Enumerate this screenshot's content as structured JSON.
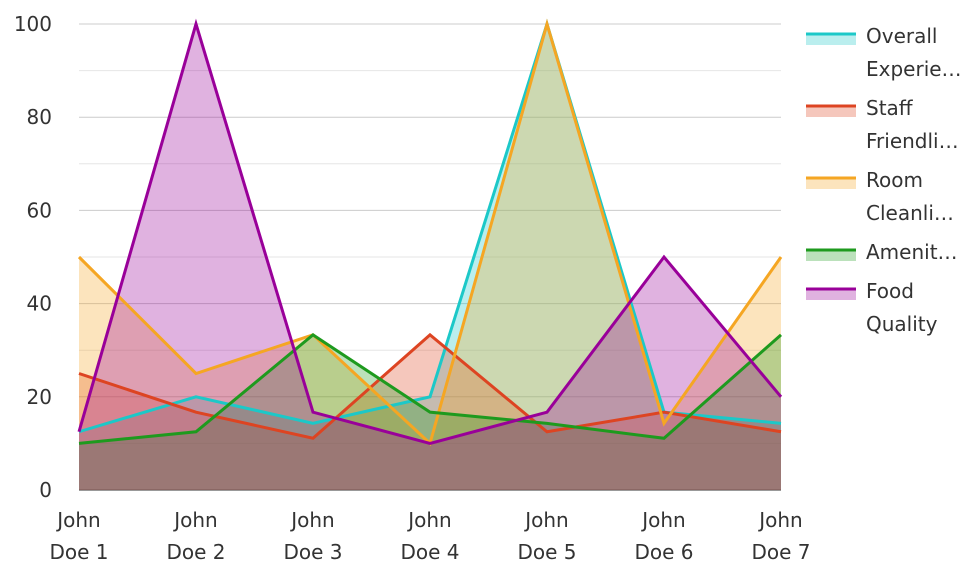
{
  "chart_data": {
    "type": "area",
    "categories": [
      "John Doe 1",
      "John Doe 2",
      "John Doe 3",
      "John Doe 4",
      "John Doe 5",
      "John Doe 6",
      "John Doe 7"
    ],
    "category_lines": [
      [
        "John",
        "Doe 1"
      ],
      [
        "John",
        "Doe 2"
      ],
      [
        "John",
        "Doe 3"
      ],
      [
        "John",
        "Doe 4"
      ],
      [
        "John",
        "Doe 5"
      ],
      [
        "John",
        "Doe 6"
      ],
      [
        "John",
        "Doe 7"
      ]
    ],
    "ylim": [
      0,
      100
    ],
    "y_ticks": [
      0,
      20,
      40,
      60,
      80,
      100
    ],
    "grid": true,
    "legend_position": "right",
    "series": [
      {
        "name": "Overall Experience",
        "legend_lines": [
          "Overall",
          "Experie…"
        ],
        "color": "#1cc8c8",
        "values": [
          12.5,
          20,
          14.3,
          20,
          100,
          16.7,
          14.3
        ]
      },
      {
        "name": "Staff Friendliness",
        "legend_lines": [
          "Staff",
          "Friendli…"
        ],
        "color": "#dd4422",
        "values": [
          25,
          16.7,
          11.1,
          33.3,
          12.5,
          16.7,
          12.5
        ]
      },
      {
        "name": "Room Cleanliness",
        "legend_lines": [
          "Room",
          "Cleanli…"
        ],
        "color": "#f5a623",
        "values": [
          50,
          25,
          33.3,
          10,
          100,
          14.3,
          50
        ]
      },
      {
        "name": "Amenities",
        "legend_lines": [
          "Amenit…"
        ],
        "color": "#1e9a1e",
        "values": [
          10,
          12.5,
          33.3,
          16.7,
          14.3,
          11.1,
          33.3
        ]
      },
      {
        "name": "Food Quality",
        "legend_lines": [
          "Food",
          "Quality"
        ],
        "color": "#990099",
        "values": [
          12.5,
          100,
          16.7,
          10,
          16.7,
          50,
          20
        ]
      }
    ]
  }
}
